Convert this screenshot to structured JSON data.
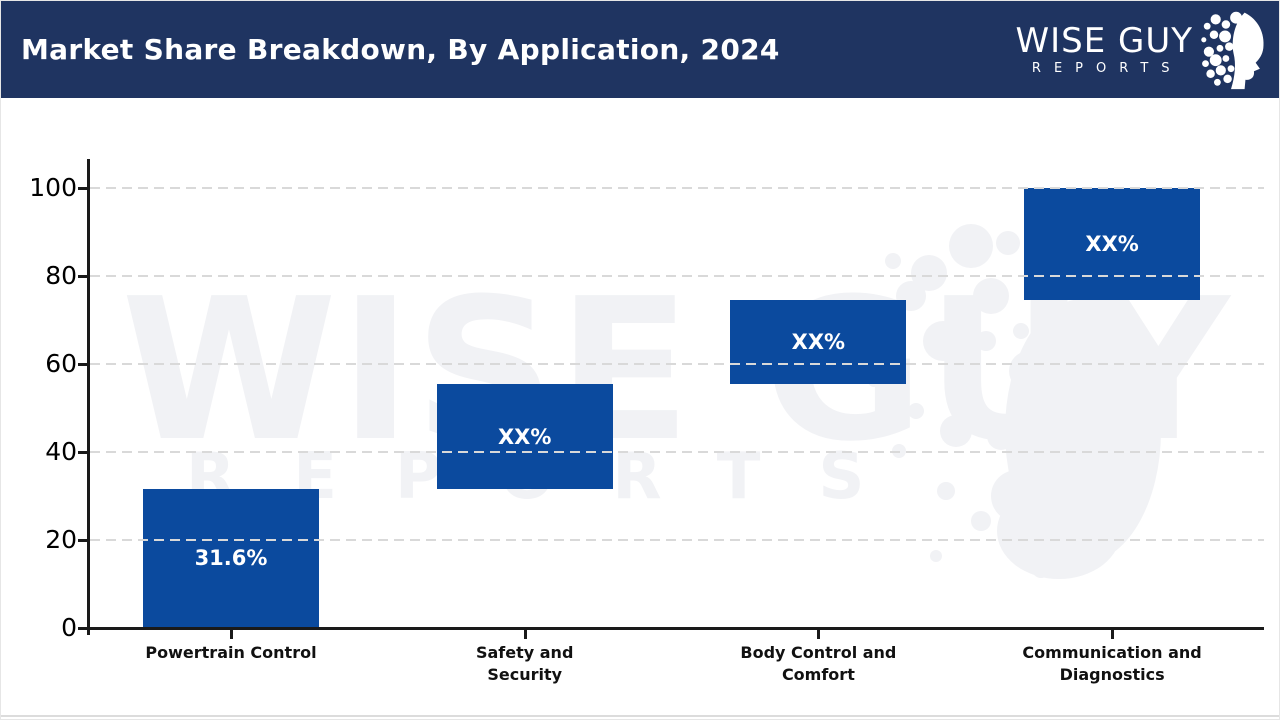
{
  "header": {
    "title": "Market Share Breakdown, By Application, 2024",
    "logo_line1": "WISE GUY",
    "logo_line2": "REPORTS"
  },
  "watermark": {
    "line1": "WISE GUY",
    "line2": "REPORTS"
  },
  "chart_data": {
    "type": "bar",
    "subtype": "waterfall",
    "title": "Market Share Breakdown, By Application, 2024",
    "categories": [
      "Powertrain Control",
      "Safety and\nSecurity",
      "Body Control and\nComfort",
      "Communication and\nDiagnostics"
    ],
    "segments": [
      {
        "category": "Powertrain Control",
        "start": 0,
        "end": 31.6,
        "label": "31.6%"
      },
      {
        "category": "Safety and Security",
        "start": 31.6,
        "end": 55.4,
        "label": "XX%"
      },
      {
        "category": "Body Control and Comfort",
        "start": 55.4,
        "end": 74.5,
        "label": "XX%"
      },
      {
        "category": "Communication and Diagnostics",
        "start": 74.5,
        "end": 100,
        "label": "XX%"
      }
    ],
    "ylim": [
      0,
      100
    ],
    "yticks": [
      0,
      20,
      40,
      60,
      80,
      100
    ],
    "xlabel": "",
    "ylabel": "",
    "grid": "horizontal-dashed",
    "legend": "none",
    "colors": {
      "bar": "#0b4a9e",
      "bar_label": "#ffffff",
      "axis": "#1a1a1a",
      "gridline": "#d9d9d9",
      "header_bg": "#1f3461",
      "watermark": "#f1f2f5"
    }
  }
}
